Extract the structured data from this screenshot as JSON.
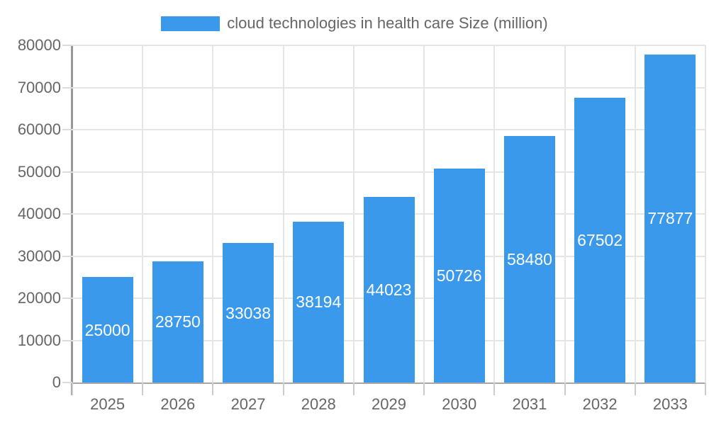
{
  "colors": {
    "bar": "#3b99ec",
    "gridline": "#e5e5e5",
    "axis_line": "#9e9e9e",
    "axis_text": "#666666",
    "value_text": "#ffffff"
  },
  "chart_data": {
    "type": "bar",
    "legend": "cloud technologies in health care Size (million)",
    "legend_position": "top",
    "categories": [
      "2025",
      "2026",
      "2027",
      "2028",
      "2029",
      "2030",
      "2031",
      "2032",
      "2033"
    ],
    "series": [
      {
        "name": "cloud technologies in health care Size (million)",
        "values": [
          25000,
          28750,
          33038,
          38194,
          44023,
          50726,
          58480,
          67502,
          77877
        ]
      }
    ],
    "value_labels": [
      "25000",
      "28750",
      "33038",
      "38194",
      "44023",
      "50726",
      "58480",
      "67502",
      "77877"
    ],
    "xlabel": "",
    "ylabel": "",
    "ylim": [
      0,
      80000
    ],
    "ytick_step": 10000,
    "ytick_labels": [
      "0",
      "10000",
      "20000",
      "30000",
      "40000",
      "50000",
      "60000",
      "70000",
      "80000"
    ],
    "grid": true
  }
}
